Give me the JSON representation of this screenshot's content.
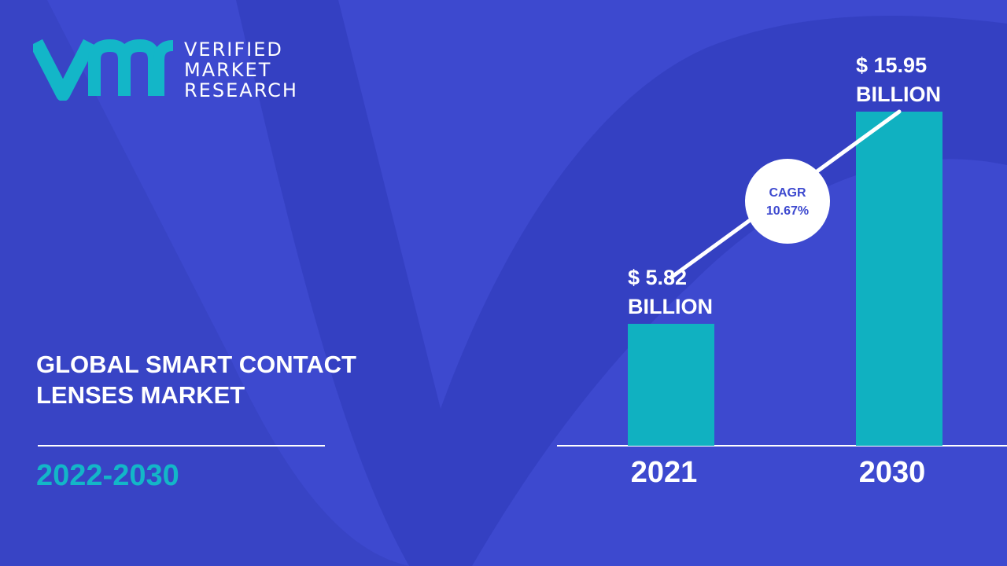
{
  "brand": {
    "line1": "VERIFIED",
    "line2": "MARKET",
    "line3": "RESEARCH",
    "logo_color": "#13b6c8"
  },
  "title": {
    "line1": "GLOBAL SMART CONTACT",
    "line2": "LENSES MARKET"
  },
  "period": "2022-2030",
  "colors": {
    "background": "#3d49cf",
    "bar": "#10b1c1",
    "text": "#ffffff",
    "accent": "#13b6c8",
    "cagr_text": "#3d49cf"
  },
  "chart_data": {
    "type": "bar",
    "categories": [
      "2021",
      "2030"
    ],
    "values": [
      5.82,
      15.95
    ],
    "value_labels": [
      [
        "$ 5.82",
        "BILLION"
      ],
      [
        "$ 15.95",
        "BILLION"
      ]
    ],
    "unit": "USD Billion",
    "cagr_label": "CAGR",
    "cagr_value": "10.67%",
    "trend_line": true,
    "grid": false,
    "legend": "none"
  }
}
